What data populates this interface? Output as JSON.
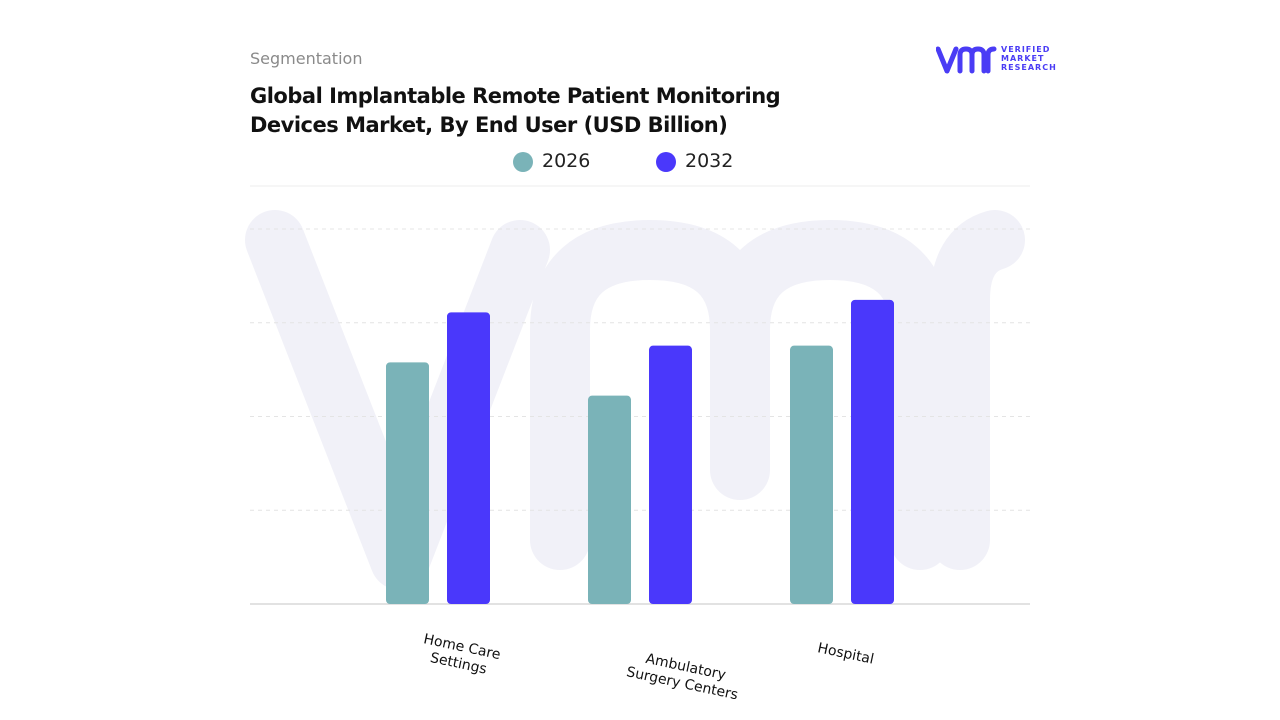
{
  "page": {
    "eyebrow": "Segmentation",
    "title": "Global Implantable Remote Patient Monitoring Devices Market, By End User (USD Billion)"
  },
  "brand": {
    "name": "VERIFIED MARKET RESEARCH",
    "line1": "VERIFIED",
    "line2": "MARKET",
    "line3": "RESEARCH",
    "mark": "vmr-logo-icon",
    "color": "#4a3cf5"
  },
  "chart_data": {
    "type": "bar",
    "categories": [
      "Home Care Settings",
      "Ambulatory Surgery Centers",
      "Hospital"
    ],
    "category_lines": [
      [
        "Home Care",
        "Settings"
      ],
      [
        "Ambulatory",
        "Surgery Centers"
      ],
      [
        "Hospital"
      ]
    ],
    "series": [
      {
        "name": "2026",
        "color": "#7ab3b8",
        "values": [
          2.9,
          2.5,
          3.1
        ]
      },
      {
        "name": "2032",
        "color": "#4a38fb",
        "values": [
          3.5,
          3.1,
          3.65
        ]
      }
    ],
    "title": "Global Implantable Remote Patient Monitoring Devices Market, By End User (USD Billion)",
    "xlabel": "",
    "ylabel": "",
    "ylim": [
      0,
      4.5
    ],
    "grid": true,
    "legend_position": "top-center"
  }
}
